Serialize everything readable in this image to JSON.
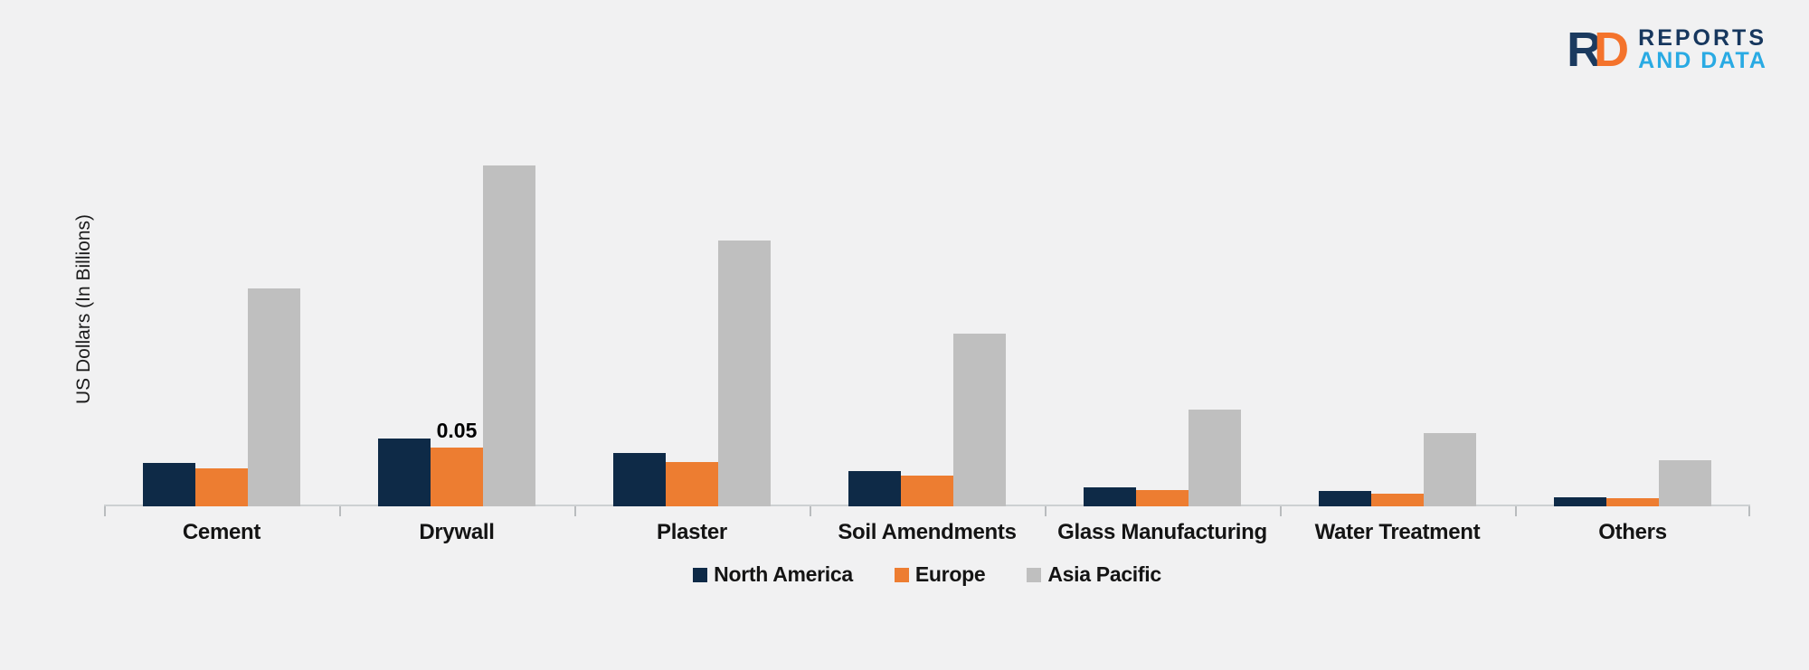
{
  "logo": {
    "mark_r": "R",
    "mark_d": "D",
    "line1": "REPORTS",
    "line2": "AND DATA",
    "colors": {
      "mark_r": "#1b3a5f",
      "mark_d": "#f4732c",
      "line1": "#17375e",
      "line2": "#29aae3"
    }
  },
  "chart_data": {
    "type": "bar",
    "title": "",
    "xlabel": "",
    "ylabel": "US Dollars (In Billions)",
    "categories": [
      "Cement",
      "Drywall",
      "Plaster",
      "Soil Amendments",
      "Glass Manufacturing",
      "Water Treatment",
      "Others"
    ],
    "series": [
      {
        "name": "North America",
        "color": "#0e2a47",
        "values": [
          0.037,
          0.058,
          0.045,
          0.03,
          0.016,
          0.013,
          0.008
        ],
        "data_labels": [
          "",
          "",
          "",
          "",
          "",
          "",
          ""
        ]
      },
      {
        "name": "Europe",
        "color": "#ed7d31",
        "values": [
          0.032,
          0.05,
          0.038,
          0.026,
          0.014,
          0.011,
          0.007
        ],
        "data_labels": [
          "",
          "0.05",
          "",
          "",
          "",
          "",
          ""
        ]
      },
      {
        "name": "Asia Pacific",
        "color": "#bfbfbf",
        "values": [
          0.185,
          0.29,
          0.226,
          0.147,
          0.082,
          0.062,
          0.039
        ],
        "data_labels": [
          "",
          "",
          "",
          "",
          "",
          "",
          ""
        ]
      }
    ],
    "ylim": [
      0,
      0.3
    ],
    "grid": false,
    "y_tick_labels_shown": false,
    "legend_position": "bottom",
    "background_color": "#f1f1f2",
    "axis_color": "#cdd0d2"
  }
}
